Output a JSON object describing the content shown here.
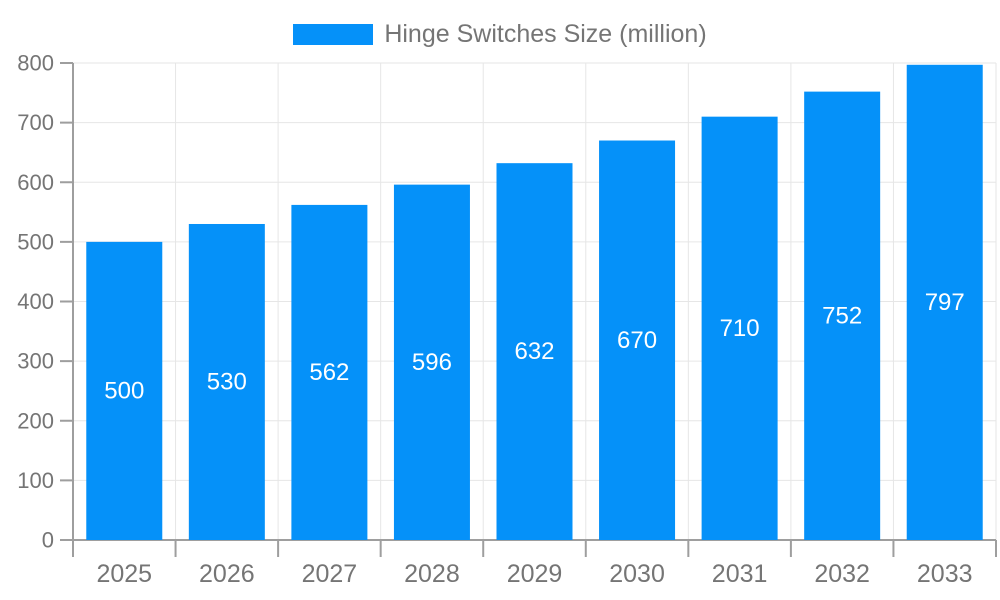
{
  "chart_data": {
    "type": "bar",
    "title": "Hinge Switches Size (million)",
    "categories": [
      "2025",
      "2026",
      "2027",
      "2028",
      "2029",
      "2030",
      "2031",
      "2032",
      "2033"
    ],
    "series": [
      {
        "name": "Hinge Switches Size (million)",
        "values": [
          500,
          530,
          562,
          596,
          632,
          670,
          710,
          752,
          797
        ]
      }
    ],
    "xlabel": "",
    "ylabel": "",
    "ylim": [
      0,
      800
    ],
    "yticks": [
      0,
      100,
      200,
      300,
      400,
      500,
      600,
      700,
      800
    ],
    "grid": "horizontal-and-vertical",
    "legend_position": "top-center",
    "value_labels": "inside-middle",
    "colors": {
      "bar": "#0591f9",
      "grid": "#e6e6e6",
      "axis": "#9e9e9e",
      "tick_label": "#757575",
      "value_label": "#ffffff",
      "background": "#ffffff"
    }
  }
}
